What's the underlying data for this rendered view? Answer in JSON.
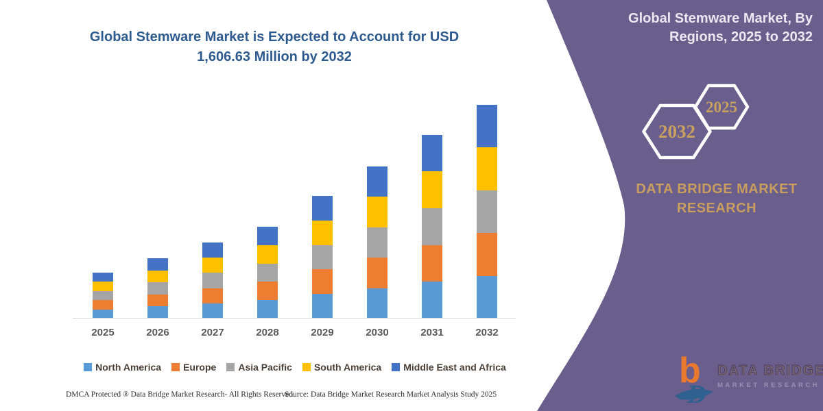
{
  "page": {
    "background": "#FFFFFF",
    "accent_purple": "#695E8C"
  },
  "title": {
    "text": "Global Stemware Market is Expected to Account for USD 1,606.63 Million by 2032",
    "color": "#2E5B8F"
  },
  "side_panel": {
    "header": "Global Stemware Market, By Regions, 2025 to 2032",
    "hexagons": [
      {
        "label": "2032"
      },
      {
        "label": "2025"
      }
    ],
    "brand_text_line1": "DATA BRIDGE MARKET",
    "brand_text_line2": "RESEARCH",
    "gold": "#C99E5F"
  },
  "chart_data": {
    "type": "bar",
    "stacked": true,
    "title": "Global Stemware Market, By Regions, 2025 to 2032",
    "xlabel": "",
    "ylabel": "",
    "y_axis_visible": false,
    "gridlines": false,
    "value_unit": "USD Million",
    "categories": [
      "2025",
      "2026",
      "2027",
      "2028",
      "2029",
      "2030",
      "2031",
      "2032"
    ],
    "series": [
      {
        "name": "North America",
        "color": "#5B9BD5",
        "values": [
          69.0,
          90.6,
          114.4,
          137.8,
          184.4,
          229.2,
          276.4,
          321.3
        ]
      },
      {
        "name": "Europe",
        "color": "#ED7D31",
        "values": [
          69.0,
          90.6,
          114.4,
          137.8,
          184.4,
          229.2,
          276.4,
          321.3
        ]
      },
      {
        "name": "Asia Pacific",
        "color": "#A5A5A5",
        "values": [
          69.0,
          90.6,
          114.4,
          137.8,
          184.4,
          229.2,
          276.4,
          321.3
        ]
      },
      {
        "name": "South America",
        "color": "#FFC000",
        "values": [
          69.0,
          90.6,
          114.4,
          137.8,
          184.4,
          229.2,
          276.4,
          321.3
        ]
      },
      {
        "name": "Middle East and Africa",
        "color": "#4472C4",
        "values": [
          69.0,
          90.6,
          114.4,
          137.8,
          184.4,
          229.2,
          276.4,
          321.3
        ]
      }
    ],
    "totals": [
      345,
      453,
      572,
      689,
      922,
      1146,
      1382,
      1606.63
    ],
    "legend_position": "bottom"
  },
  "footer": {
    "dmca": "DMCA Protected ® Data Bridge Market Research-  All Rights Reserved.",
    "source": "Source: Data Bridge Market Research  Market Analysis Study 2025"
  },
  "logo": {
    "b_glyph": "b",
    "d_glyph": "D",
    "name": "DATA BRIDGE",
    "subtitle": "MARKET RESEARCH"
  }
}
